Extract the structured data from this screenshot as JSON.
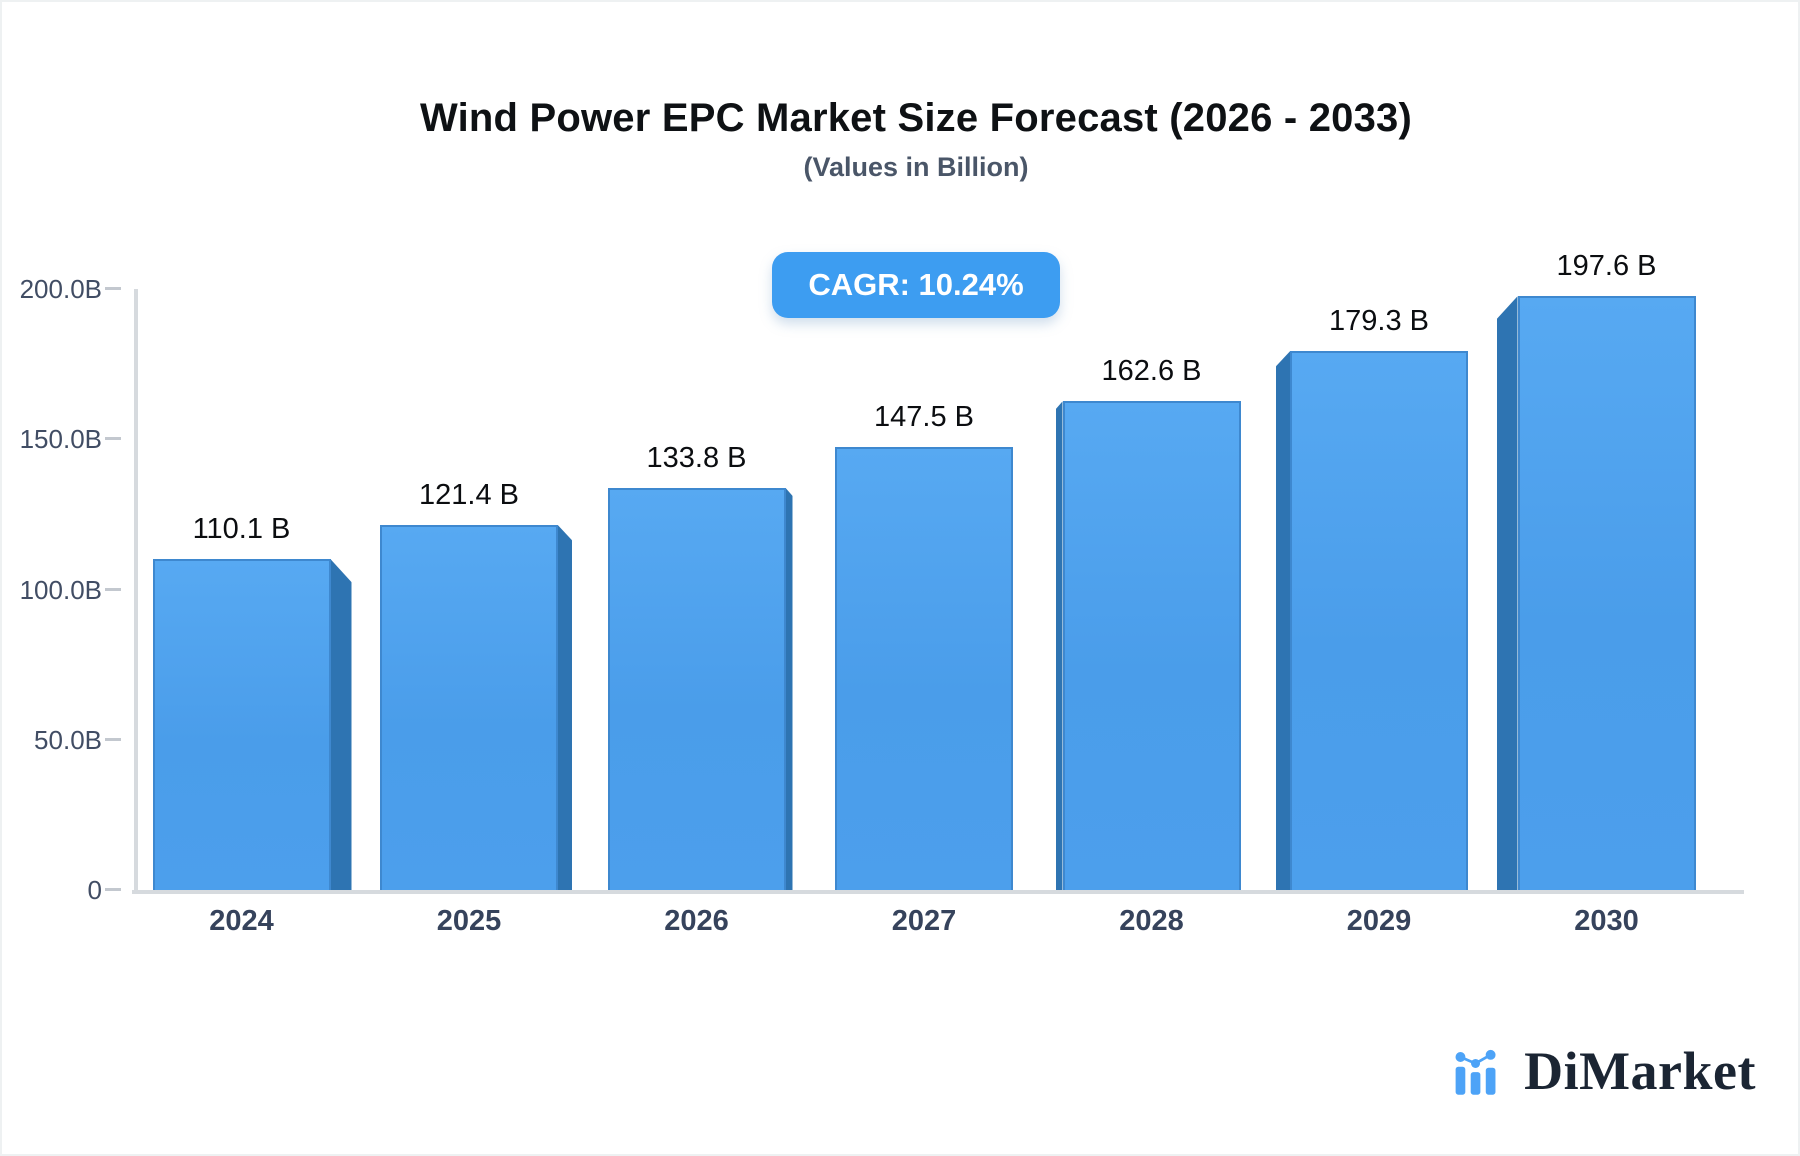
{
  "header": {
    "title": "Wind Power EPC Market Size Forecast (2026 - 2033)",
    "subtitle": "(Values in Billion)",
    "cagr_badge": "CAGR: 10.24%"
  },
  "chart_data": {
    "type": "bar",
    "title": "Wind Power EPC Market Size Forecast (2026 - 2033)",
    "subtitle": "(Values in Billion)",
    "annotation": "CAGR: 10.24%",
    "categories": [
      "2024",
      "2025",
      "2026",
      "2027",
      "2028",
      "2029",
      "2030"
    ],
    "values": [
      110.1,
      121.4,
      133.8,
      147.5,
      162.6,
      179.3,
      197.6
    ],
    "value_labels": [
      "110.1 B",
      "121.4 B",
      "133.8 B",
      "147.5 B",
      "162.6 B",
      "179.3 B",
      "197.6 B"
    ],
    "ylim": [
      0,
      200
    ],
    "y_ticks": [
      {
        "value": 200,
        "label": "200.0B"
      },
      {
        "value": 150,
        "label": "150.0B"
      },
      {
        "value": 100,
        "label": "100.0B"
      },
      {
        "value": 50,
        "label": "50.0B"
      },
      {
        "value": 0,
        "label": "0"
      }
    ],
    "grid": false,
    "legend": null,
    "colors": {
      "bar_face_top": "#57a9f2",
      "bar_face_bottom": "#4a9dea",
      "bar_side": "#2e74b2",
      "bar_border": "#3e88cf",
      "axis": "#d6dade",
      "badge": "#3d9df1",
      "axis_label": "#414d64",
      "category_label": "#36435c",
      "value_label": "#0b0d10"
    }
  },
  "footer": {
    "brand": "DiMarket",
    "logo_icon": "bar-chart-logo-icon",
    "brand_color": "#1b2533",
    "icon_color": "#4da3f7"
  }
}
